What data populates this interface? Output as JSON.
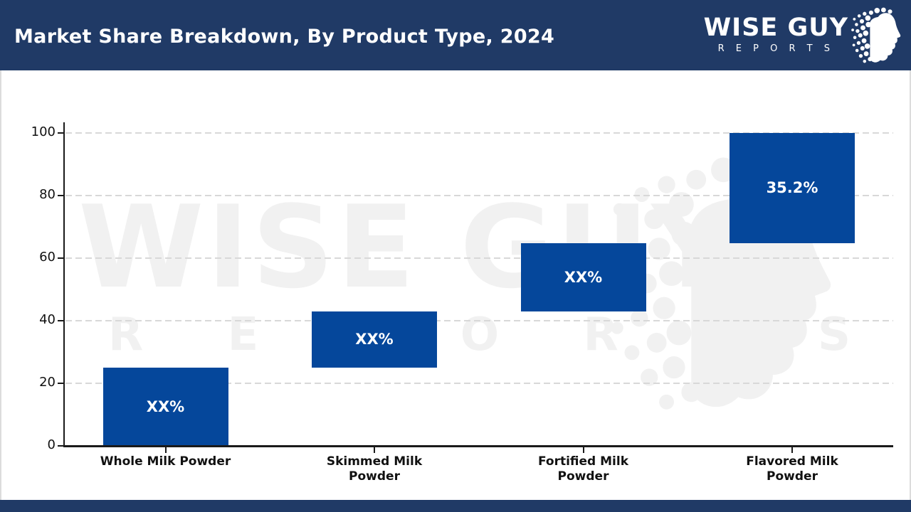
{
  "header": {
    "title": "Market Share Breakdown, By Product Type, 2024",
    "logo": {
      "wordmark": "WISE GUY",
      "subtext": "R E P O R T S"
    }
  },
  "watermark": {
    "wordmark": "WISE GUY",
    "subtext": "R E P O R T S"
  },
  "colors": {
    "navy": "#203a66",
    "bar_blue": "#05479b",
    "watermark_gray": "#f1f1f1",
    "gridline_gray": "#d8d8d8",
    "axis_black": "#111111",
    "bar_label_white": "#ffffff"
  },
  "chart_data": {
    "type": "bar",
    "subtype": "floating-waterfall",
    "title": "Market Share Breakdown, By Product Type, 2024",
    "categories": [
      "Whole Milk Powder",
      "Skimmed Milk\nPowder",
      "Fortified Milk\nPowder",
      "Flavored Milk\nPowder"
    ],
    "bar_labels": [
      "XX%",
      "XX%",
      "XX%",
      "35.2%"
    ],
    "segments": [
      [
        0,
        25
      ],
      [
        25,
        43
      ],
      [
        43,
        64.8
      ],
      [
        64.8,
        100
      ]
    ],
    "increments": [
      25,
      18,
      21.8,
      35.2
    ],
    "ylim": [
      0,
      100
    ],
    "yticks": [
      0,
      20,
      40,
      60,
      80,
      100
    ],
    "xlabel": "",
    "ylabel": "",
    "grid": "horizontal-dashed",
    "legend": "none"
  }
}
